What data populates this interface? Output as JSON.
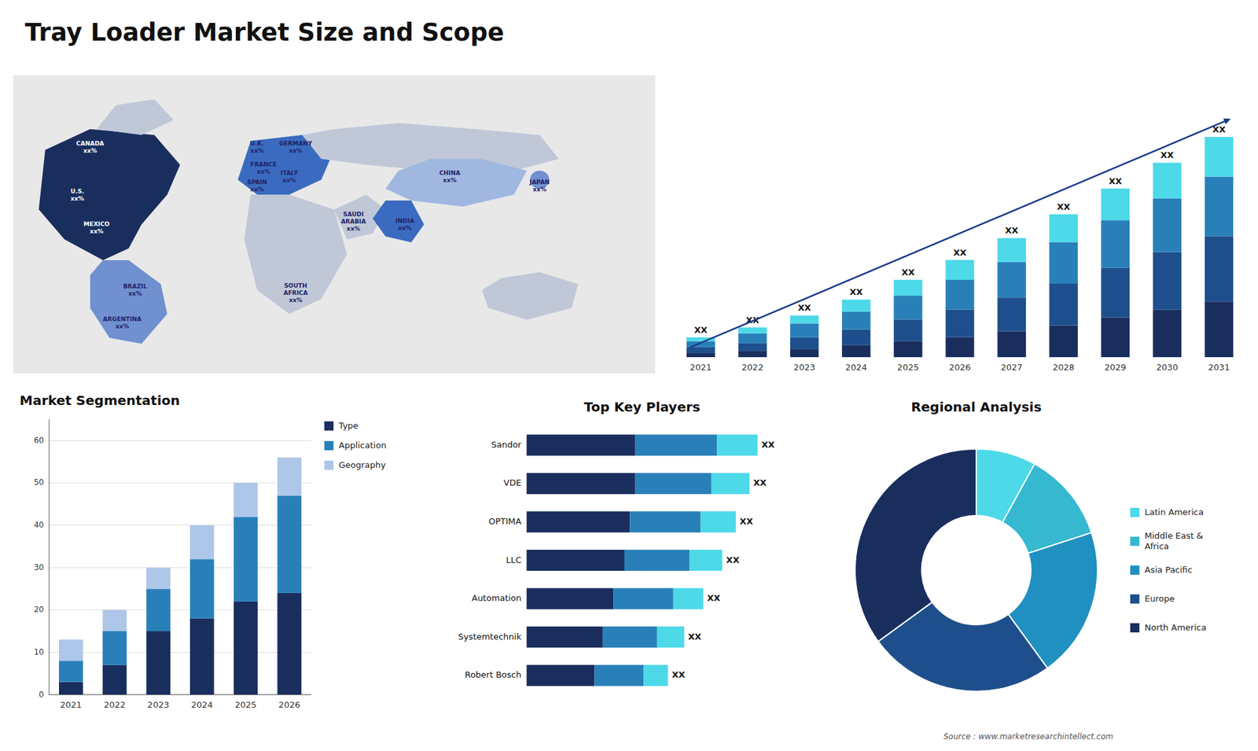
{
  "chart_data": [
    {
      "type": "map",
      "title": "Tray Loader Market Size and Scope",
      "annotations": [
        "CANADA\nxx%",
        "U.S.\nxx%",
        "MEXICO\nxx%",
        "BRAZIL\nxx%",
        "ARGENTINA\nxx%",
        "U.K.\nxx%",
        "FRANCE\nxx%",
        "SPAIN\nxx%",
        "GERMANY\nxx%",
        "ITALY\nxx%",
        "SAUDI\nARABIA\nxx%",
        "SOUTH\nAFRICA\nxx%",
        "CHINA\nxx%",
        "INDIA\nxx%",
        "JAPAN\nxx%"
      ]
    },
    {
      "type": "bar",
      "stacked": true,
      "categories": [
        "2021",
        "2022",
        "2023",
        "2024",
        "2025",
        "2026",
        "2027",
        "2028",
        "2029",
        "2030",
        "2031"
      ],
      "series": [
        {
          "color": "#1a2e5e",
          "values": [
            2,
            3,
            4,
            6,
            8,
            10,
            13,
            16,
            20,
            24,
            28
          ]
        },
        {
          "color": "#1e4f8c",
          "values": [
            3,
            4,
            6,
            8,
            11,
            14,
            17,
            21,
            25,
            29,
            33
          ]
        },
        {
          "color": "#2980b9",
          "values": [
            3,
            5,
            7,
            9,
            12,
            15,
            18,
            21,
            24,
            27,
            30
          ]
        },
        {
          "color": "#4dd9e8",
          "values": [
            2,
            3,
            4,
            6,
            8,
            10,
            12,
            14,
            16,
            18,
            20
          ]
        }
      ],
      "ylim": [
        0,
        138.75
      ],
      "tick_labels": "x",
      "annotations": [
        "XX",
        "XX",
        "XX",
        "XX",
        "XX",
        "XX",
        "XX",
        "XX",
        "XX",
        "XX",
        "XX"
      ]
    },
    {
      "type": "bar",
      "title": "Market Segmentation",
      "stacked": true,
      "categories": [
        "2021",
        "2022",
        "2023",
        "2024",
        "2025",
        "2026"
      ],
      "series": [
        {
          "name": "Type",
          "color": "#1a2e5e",
          "values": [
            3,
            7,
            15,
            18,
            22,
            24
          ]
        },
        {
          "name": "Application",
          "color": "#2980b9",
          "values": [
            5,
            8,
            10,
            14,
            20,
            23
          ]
        },
        {
          "name": "Geography",
          "color": "#aec6e8",
          "values": [
            5,
            5,
            5,
            8,
            8,
            9
          ]
        }
      ],
      "ylim": [
        0,
        65
      ],
      "yticks": [
        0,
        10,
        20,
        30,
        40,
        50,
        60
      ],
      "grid": true,
      "legend": "right"
    },
    {
      "type": "bar",
      "orientation": "horizontal",
      "title": "Top Key Players",
      "stacked": true,
      "categories": [
        "Sandor",
        "VDE",
        "OPTIMA",
        "LLC",
        "Automation",
        "Systemtechnik",
        "Robert Bosch"
      ],
      "series": [
        {
          "color": "#1a2e5e",
          "values": [
            40,
            40,
            38,
            36,
            32,
            28,
            25
          ]
        },
        {
          "color": "#2980b9",
          "values": [
            30,
            28,
            26,
            24,
            22,
            20,
            18
          ]
        },
        {
          "color": "#4dd9e8",
          "values": [
            15,
            14,
            13,
            12,
            11,
            10,
            9
          ]
        }
      ],
      "xlim": [
        -25,
        110
      ],
      "tick_labels": "y",
      "annotations": [
        "XX",
        "XX",
        "XX",
        "XX",
        "XX",
        "XX",
        "XX"
      ]
    },
    {
      "type": "pie",
      "title": "Regional Analysis",
      "categories": [
        "Latin America",
        "Middle East &\nAfrica",
        "Asia Pacific",
        "Europe",
        "North America"
      ],
      "values": [
        8,
        12,
        20,
        25,
        35
      ],
      "colors": [
        "#4dd9e8",
        "#35b8d0",
        "#2090c0",
        "#1e4f8c",
        "#1a2e5e"
      ],
      "legend": "right",
      "annotations": [
        "Source : www.marketresearchintellect.com"
      ]
    }
  ]
}
